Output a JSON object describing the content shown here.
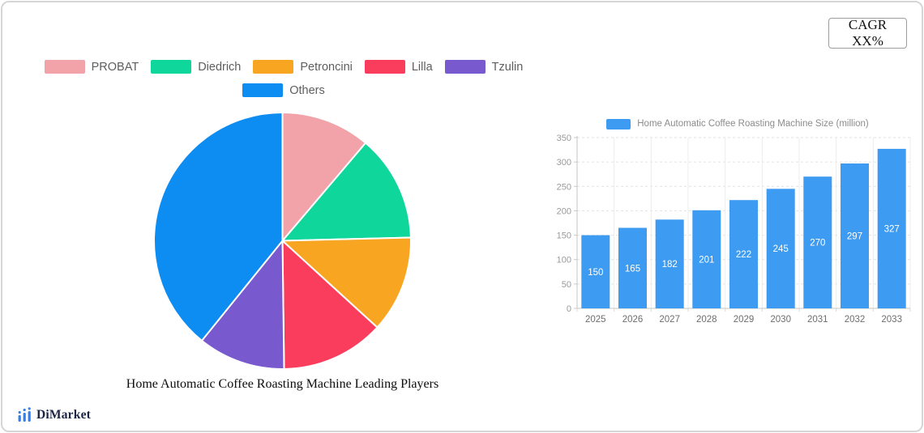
{
  "header": {
    "cagr_label": "CAGR XX%"
  },
  "brand": {
    "name": "DiMarket",
    "icon": "bar-chart-logo-icon",
    "icon_color": "#2f80ed",
    "text_color": "#1b2442"
  },
  "chart_data": [
    {
      "type": "pie",
      "title": "Home Automatic Coffee Roasting Machine Leading Players",
      "legend_position": "top",
      "start_angle_deg": 0,
      "direction": "clockwise",
      "legend_rows": [
        5,
        1
      ],
      "slices": [
        {
          "label": "PROBAT",
          "value": 11.2,
          "color": "#f2a3a9"
        },
        {
          "label": "Diedrich",
          "value": 13.4,
          "color": "#0fd69b"
        },
        {
          "label": "Petroncini",
          "value": 12.2,
          "color": "#f8a521"
        },
        {
          "label": "Lilla",
          "value": 13.0,
          "color": "#fb3d5d"
        },
        {
          "label": "Tzulin",
          "value": 11.0,
          "color": "#7859ce"
        },
        {
          "label": "Others",
          "value": 39.2,
          "color": "#0d8cf2"
        }
      ]
    },
    {
      "type": "bar",
      "legend": "Home Automatic Coffee Roasting Machine Size (million)",
      "categories": [
        "2025",
        "2026",
        "2027",
        "2028",
        "2029",
        "2030",
        "2031",
        "2032",
        "2033"
      ],
      "values": [
        150,
        165,
        182,
        201,
        222,
        245,
        270,
        297,
        327
      ],
      "bar_color": "#3e9bf2",
      "ylabel": "",
      "xlabel": "",
      "ylim": [
        0,
        350
      ],
      "ytick_step": 50,
      "grid": true,
      "value_labels": "inside-white"
    }
  ]
}
